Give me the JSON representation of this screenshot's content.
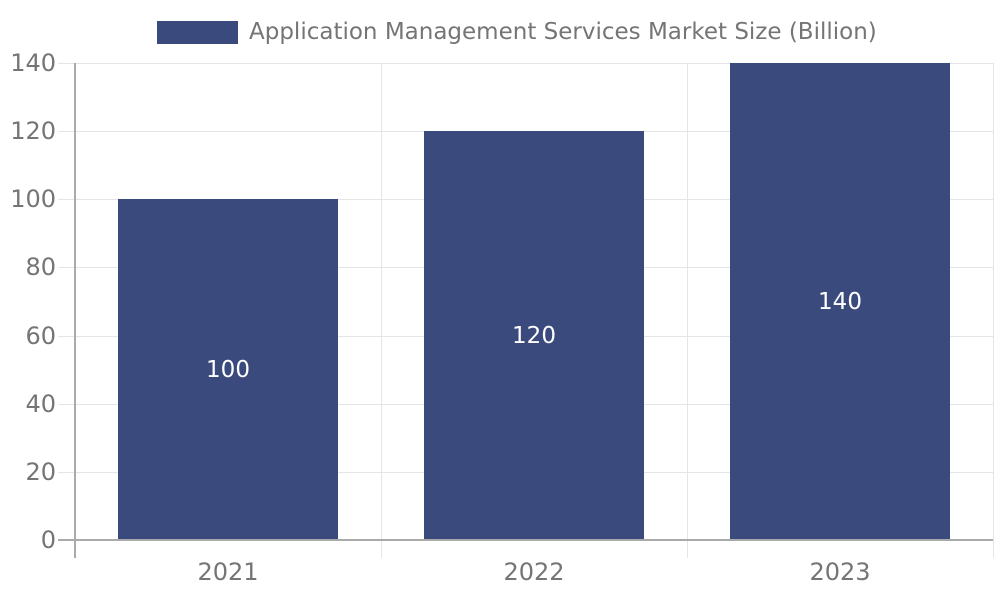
{
  "chart_data": {
    "type": "bar",
    "title": "Application Management Services Market Size (Billion)",
    "legend": {
      "label": "Application Management Services Market Size (Billion)",
      "position": "top-center"
    },
    "categories": [
      "2021",
      "2022",
      "2023"
    ],
    "series": [
      {
        "name": "Application Management Services Market Size (Billion)",
        "values": [
          100,
          120,
          140
        ],
        "color": "#3A4A7D"
      }
    ],
    "show_value_labels": true,
    "xlabel": "",
    "ylabel": "",
    "ylim": [
      0,
      140
    ],
    "yticks": [
      0,
      20,
      40,
      60,
      80,
      100,
      120,
      140
    ],
    "grid": true,
    "colors": {
      "bar": "#3A4A7D",
      "value_label": "#FFFFFF",
      "axis_line": "#AAAAAA",
      "grid_line": "#E5E5E5",
      "tick_label": "#757575",
      "legend_text": "#757575",
      "background": "#FFFFFF"
    }
  }
}
